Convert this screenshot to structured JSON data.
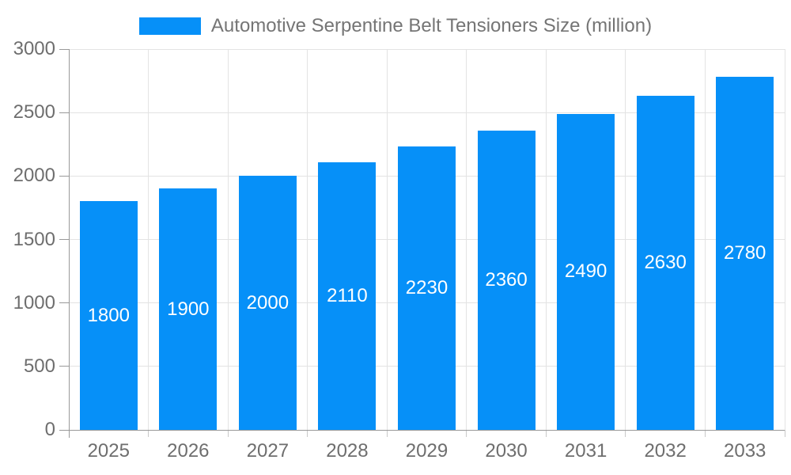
{
  "legend": {
    "label": "Automotive Serpentine Belt Tensioners Size (million)",
    "swatch_color": "#0690F8"
  },
  "chart_data": {
    "type": "bar",
    "title": "Automotive Serpentine Belt Tensioners Size (million)",
    "categories": [
      "2025",
      "2026",
      "2027",
      "2028",
      "2029",
      "2030",
      "2031",
      "2032",
      "2033"
    ],
    "values": [
      1800,
      1900,
      2000,
      2110,
      2230,
      2360,
      2490,
      2630,
      2780
    ],
    "xlabel": "",
    "ylabel": "",
    "ylim": [
      0,
      3000
    ],
    "yticks": [
      0,
      500,
      1000,
      1500,
      2000,
      2500,
      3000
    ],
    "grid": true,
    "legend_position": "top",
    "colors": {
      "bar": "#0690F8",
      "bar_label": "#FFFFFF",
      "axis_line": "#999999",
      "gridline": "#E3E3E3",
      "minor_tick": "#C9C9C9",
      "tick_label": "#6E6E6E",
      "legend_text": "#757575",
      "background": "#FFFFFF"
    }
  }
}
